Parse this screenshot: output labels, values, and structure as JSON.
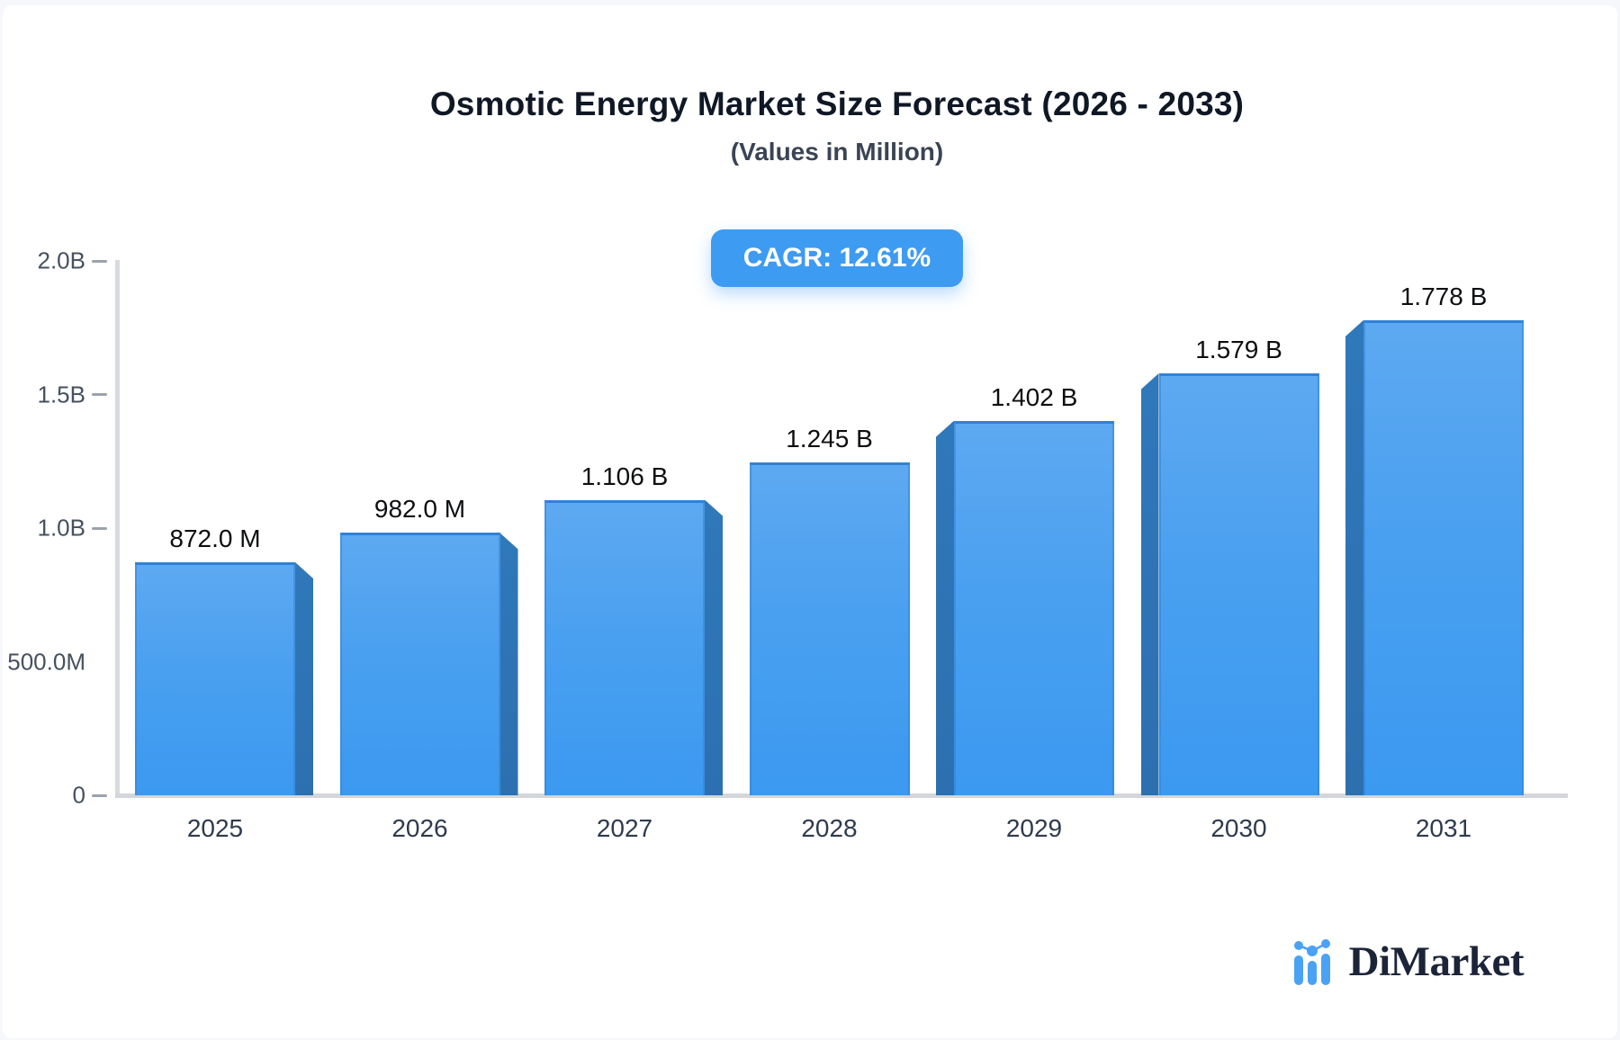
{
  "header": {
    "title": "Osmotic Energy Market Size Forecast (2026 - 2033)",
    "subtitle": "(Values in Million)",
    "cagr_label": "CAGR: 12.61%"
  },
  "chart_data": {
    "type": "bar",
    "title": "Osmotic Energy Market Size Forecast (2026 - 2033)",
    "subtitle": "(Values in Million)",
    "unit": "Million USD",
    "cagr_percent": 12.61,
    "categories": [
      "2025",
      "2026",
      "2027",
      "2028",
      "2029",
      "2030",
      "2031"
    ],
    "values": [
      872,
      982,
      1106,
      1245,
      1402,
      1579,
      1778
    ],
    "value_labels": [
      "872.0 M",
      "982.0 M",
      "1.106 B",
      "1.245 B",
      "1.402 B",
      "1.579 B",
      "1.778 B"
    ],
    "ylim": [
      0,
      2000
    ],
    "y_axis": [
      {
        "label": "2.0B",
        "value": 2000,
        "tick": true
      },
      {
        "label": "1.5B",
        "value": 1500,
        "tick": true
      },
      {
        "label": "1.0B",
        "value": 1000,
        "tick": true
      },
      {
        "label": "500.0M",
        "value": 500,
        "tick": false
      },
      {
        "label": "0",
        "value": 0,
        "tick": true
      }
    ],
    "grid": false,
    "legend": "none",
    "colors": {
      "bar_top": "#5da9f1",
      "bar_bottom": "#3b99f0",
      "bar_side": "#2e74b5",
      "accent": "#3d9bf2",
      "axis_line": "#d5d8db",
      "tick": "#9aa2ad"
    }
  },
  "branding": {
    "logo_text": "DiMarket",
    "logo_icon": "bar-chart-line-icon"
  }
}
